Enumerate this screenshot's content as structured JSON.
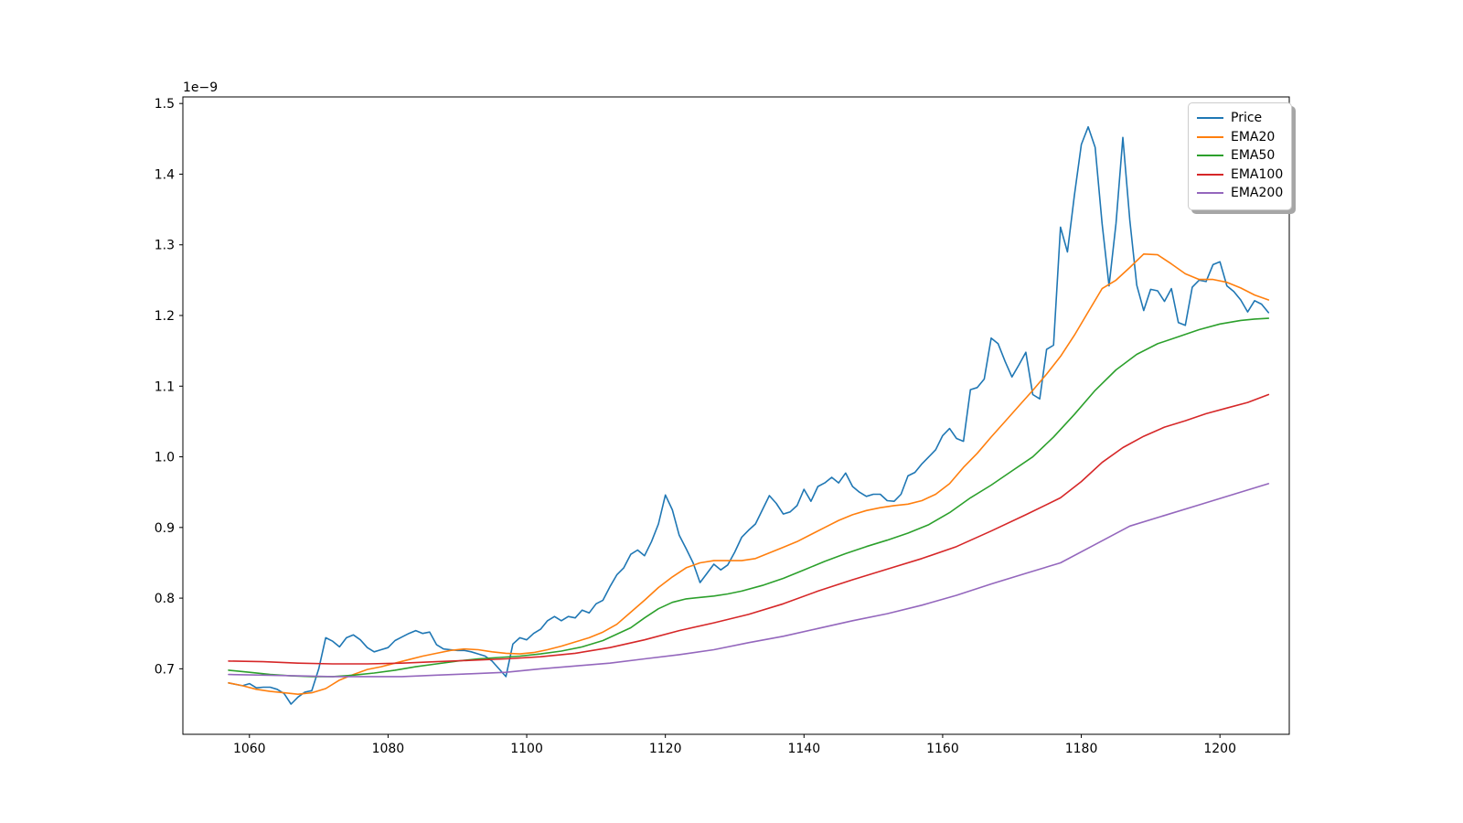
{
  "chart_data": {
    "type": "line",
    "title": "",
    "xlabel": "",
    "ylabel": "",
    "grid": false,
    "offset_text": "1e−9",
    "axes": {
      "xlim": [
        1050.4,
        1210.0
      ],
      "ylim": [
        0.6073,
        1.5093
      ],
      "x_ticks": [
        1060,
        1080,
        1100,
        1120,
        1140,
        1160,
        1180,
        1200
      ],
      "y_ticks": [
        0.7,
        0.8,
        0.9,
        1.0,
        1.1,
        1.2,
        1.3,
        1.4,
        1.5
      ]
    },
    "legend": {
      "position": "upper right",
      "entries": [
        {
          "label": "Price",
          "color": "#1f77b4"
        },
        {
          "label": "EMA20",
          "color": "#ff7f0e"
        },
        {
          "label": "EMA50",
          "color": "#2ca02c"
        },
        {
          "label": "EMA100",
          "color": "#d62728"
        },
        {
          "label": "EMA200",
          "color": "#9467bd"
        }
      ]
    },
    "series": [
      {
        "name": "Price",
        "color": "#1f77b4",
        "x_start": 1057,
        "x_step": 1,
        "values": [
          0.68,
          0.678,
          0.676,
          0.679,
          0.673,
          0.674,
          0.674,
          0.671,
          0.665,
          0.65,
          0.66,
          0.667,
          0.669,
          0.7,
          0.744,
          0.739,
          0.731,
          0.744,
          0.748,
          0.741,
          0.73,
          0.724,
          0.727,
          0.73,
          0.74,
          0.745,
          0.75,
          0.754,
          0.75,
          0.752,
          0.734,
          0.728,
          0.727,
          0.726,
          0.726,
          0.724,
          0.721,
          0.718,
          0.711,
          0.7,
          0.689,
          0.735,
          0.744,
          0.741,
          0.75,
          0.756,
          0.768,
          0.774,
          0.768,
          0.774,
          0.772,
          0.783,
          0.779,
          0.792,
          0.797,
          0.816,
          0.833,
          0.843,
          0.862,
          0.868,
          0.86,
          0.88,
          0.905,
          0.946,
          0.925,
          0.889,
          0.87,
          0.85,
          0.822,
          0.835,
          0.848,
          0.84,
          0.847,
          0.865,
          0.886,
          0.896,
          0.905,
          0.925,
          0.945,
          0.934,
          0.919,
          0.922,
          0.931,
          0.954,
          0.937,
          0.958,
          0.963,
          0.971,
          0.963,
          0.977,
          0.958,
          0.95,
          0.944,
          0.947,
          0.947,
          0.938,
          0.937,
          0.947,
          0.973,
          0.978,
          0.99,
          1.0,
          1.01,
          1.03,
          1.04,
          1.026,
          1.022,
          1.095,
          1.098,
          1.11,
          1.168,
          1.16,
          1.135,
          1.113,
          1.13,
          1.148,
          1.088,
          1.082,
          1.152,
          1.158,
          1.325,
          1.29,
          1.37,
          1.442,
          1.467,
          1.438,
          1.33,
          1.242,
          1.33,
          1.452,
          1.335,
          1.243,
          1.207,
          1.237,
          1.235,
          1.22,
          1.238,
          1.19,
          1.186,
          1.24,
          1.25,
          1.248,
          1.272,
          1.276,
          1.242,
          1.234,
          1.222,
          1.205,
          1.221,
          1.216,
          1.204
        ]
      },
      {
        "name": "EMA20",
        "color": "#ff7f0e",
        "points": [
          [
            1057,
            0.68
          ],
          [
            1059,
            0.676
          ],
          [
            1061,
            0.671
          ],
          [
            1063,
            0.668
          ],
          [
            1065,
            0.666
          ],
          [
            1067,
            0.664
          ],
          [
            1069,
            0.666
          ],
          [
            1071,
            0.672
          ],
          [
            1073,
            0.684
          ],
          [
            1075,
            0.692
          ],
          [
            1077,
            0.699
          ],
          [
            1079,
            0.703
          ],
          [
            1081,
            0.708
          ],
          [
            1083,
            0.713
          ],
          [
            1085,
            0.718
          ],
          [
            1087,
            0.722
          ],
          [
            1089,
            0.726
          ],
          [
            1091,
            0.728
          ],
          [
            1093,
            0.727
          ],
          [
            1095,
            0.724
          ],
          [
            1097,
            0.722
          ],
          [
            1099,
            0.721
          ],
          [
            1101,
            0.723
          ],
          [
            1103,
            0.727
          ],
          [
            1105,
            0.732
          ],
          [
            1107,
            0.738
          ],
          [
            1109,
            0.744
          ],
          [
            1111,
            0.752
          ],
          [
            1113,
            0.763
          ],
          [
            1115,
            0.78
          ],
          [
            1117,
            0.797
          ],
          [
            1119,
            0.815
          ],
          [
            1121,
            0.83
          ],
          [
            1123,
            0.843
          ],
          [
            1125,
            0.85
          ],
          [
            1127,
            0.853
          ],
          [
            1129,
            0.853
          ],
          [
            1131,
            0.853
          ],
          [
            1133,
            0.856
          ],
          [
            1135,
            0.864
          ],
          [
            1137,
            0.872
          ],
          [
            1139,
            0.88
          ],
          [
            1141,
            0.89
          ],
          [
            1143,
            0.9
          ],
          [
            1145,
            0.91
          ],
          [
            1147,
            0.918
          ],
          [
            1149,
            0.924
          ],
          [
            1151,
            0.928
          ],
          [
            1153,
            0.931
          ],
          [
            1155,
            0.933
          ],
          [
            1157,
            0.938
          ],
          [
            1159,
            0.947
          ],
          [
            1161,
            0.962
          ],
          [
            1163,
            0.985
          ],
          [
            1165,
            1.005
          ],
          [
            1167,
            1.028
          ],
          [
            1169,
            1.05
          ],
          [
            1171,
            1.072
          ],
          [
            1173,
            1.094
          ],
          [
            1175,
            1.117
          ],
          [
            1177,
            1.142
          ],
          [
            1179,
            1.172
          ],
          [
            1181,
            1.205
          ],
          [
            1183,
            1.238
          ],
          [
            1185,
            1.25
          ],
          [
            1187,
            1.268
          ],
          [
            1189,
            1.287
          ],
          [
            1191,
            1.286
          ],
          [
            1193,
            1.273
          ],
          [
            1195,
            1.259
          ],
          [
            1197,
            1.251
          ],
          [
            1199,
            1.251
          ],
          [
            1201,
            1.247
          ],
          [
            1203,
            1.239
          ],
          [
            1205,
            1.229
          ],
          [
            1207,
            1.222
          ]
        ]
      },
      {
        "name": "EMA50",
        "color": "#2ca02c",
        "points": [
          [
            1057,
            0.698
          ],
          [
            1060,
            0.695
          ],
          [
            1063,
            0.692
          ],
          [
            1066,
            0.69
          ],
          [
            1069,
            0.689
          ],
          [
            1072,
            0.689
          ],
          [
            1075,
            0.691
          ],
          [
            1078,
            0.694
          ],
          [
            1081,
            0.698
          ],
          [
            1084,
            0.703
          ],
          [
            1087,
            0.707
          ],
          [
            1090,
            0.711
          ],
          [
            1093,
            0.714
          ],
          [
            1096,
            0.716
          ],
          [
            1099,
            0.718
          ],
          [
            1102,
            0.721
          ],
          [
            1105,
            0.725
          ],
          [
            1108,
            0.731
          ],
          [
            1111,
            0.74
          ],
          [
            1113,
            0.749
          ],
          [
            1115,
            0.758
          ],
          [
            1117,
            0.772
          ],
          [
            1119,
            0.785
          ],
          [
            1121,
            0.794
          ],
          [
            1123,
            0.799
          ],
          [
            1125,
            0.801
          ],
          [
            1127,
            0.803
          ],
          [
            1129,
            0.806
          ],
          [
            1131,
            0.81
          ],
          [
            1134,
            0.818
          ],
          [
            1137,
            0.828
          ],
          [
            1140,
            0.84
          ],
          [
            1143,
            0.852
          ],
          [
            1146,
            0.863
          ],
          [
            1149,
            0.873
          ],
          [
            1152,
            0.882
          ],
          [
            1155,
            0.892
          ],
          [
            1158,
            0.904
          ],
          [
            1161,
            0.921
          ],
          [
            1164,
            0.942
          ],
          [
            1167,
            0.96
          ],
          [
            1170,
            0.98
          ],
          [
            1173,
            1.0
          ],
          [
            1176,
            1.028
          ],
          [
            1179,
            1.06
          ],
          [
            1182,
            1.094
          ],
          [
            1185,
            1.123
          ],
          [
            1188,
            1.145
          ],
          [
            1191,
            1.16
          ],
          [
            1194,
            1.17
          ],
          [
            1197,
            1.18
          ],
          [
            1200,
            1.188
          ],
          [
            1203,
            1.193
          ],
          [
            1205,
            1.195
          ],
          [
            1207,
            1.196
          ]
        ]
      },
      {
        "name": "EMA100",
        "color": "#d62728",
        "points": [
          [
            1057,
            0.711
          ],
          [
            1062,
            0.71
          ],
          [
            1067,
            0.708
          ],
          [
            1072,
            0.707
          ],
          [
            1077,
            0.707
          ],
          [
            1082,
            0.708
          ],
          [
            1087,
            0.71
          ],
          [
            1092,
            0.712
          ],
          [
            1097,
            0.714
          ],
          [
            1102,
            0.717
          ],
          [
            1107,
            0.722
          ],
          [
            1112,
            0.73
          ],
          [
            1117,
            0.741
          ],
          [
            1122,
            0.754
          ],
          [
            1127,
            0.765
          ],
          [
            1132,
            0.777
          ],
          [
            1137,
            0.792
          ],
          [
            1142,
            0.81
          ],
          [
            1147,
            0.826
          ],
          [
            1152,
            0.841
          ],
          [
            1157,
            0.856
          ],
          [
            1162,
            0.873
          ],
          [
            1167,
            0.895
          ],
          [
            1172,
            0.918
          ],
          [
            1177,
            0.942
          ],
          [
            1180,
            0.965
          ],
          [
            1183,
            0.992
          ],
          [
            1186,
            1.013
          ],
          [
            1189,
            1.029
          ],
          [
            1192,
            1.042
          ],
          [
            1195,
            1.051
          ],
          [
            1198,
            1.061
          ],
          [
            1201,
            1.069
          ],
          [
            1204,
            1.077
          ],
          [
            1207,
            1.088
          ]
        ]
      },
      {
        "name": "EMA200",
        "color": "#9467bd",
        "points": [
          [
            1057,
            0.692
          ],
          [
            1062,
            0.691
          ],
          [
            1067,
            0.69
          ],
          [
            1072,
            0.689
          ],
          [
            1077,
            0.689
          ],
          [
            1082,
            0.689
          ],
          [
            1087,
            0.691
          ],
          [
            1092,
            0.693
          ],
          [
            1097,
            0.695
          ],
          [
            1102,
            0.7
          ],
          [
            1107,
            0.704
          ],
          [
            1112,
            0.708
          ],
          [
            1117,
            0.714
          ],
          [
            1122,
            0.72
          ],
          [
            1127,
            0.727
          ],
          [
            1132,
            0.737
          ],
          [
            1137,
            0.746
          ],
          [
            1142,
            0.757
          ],
          [
            1147,
            0.768
          ],
          [
            1152,
            0.778
          ],
          [
            1157,
            0.79
          ],
          [
            1162,
            0.804
          ],
          [
            1167,
            0.82
          ],
          [
            1172,
            0.835
          ],
          [
            1177,
            0.85
          ],
          [
            1182,
            0.876
          ],
          [
            1187,
            0.902
          ],
          [
            1192,
            0.917
          ],
          [
            1197,
            0.932
          ],
          [
            1202,
            0.947
          ],
          [
            1207,
            0.962
          ]
        ]
      }
    ]
  }
}
